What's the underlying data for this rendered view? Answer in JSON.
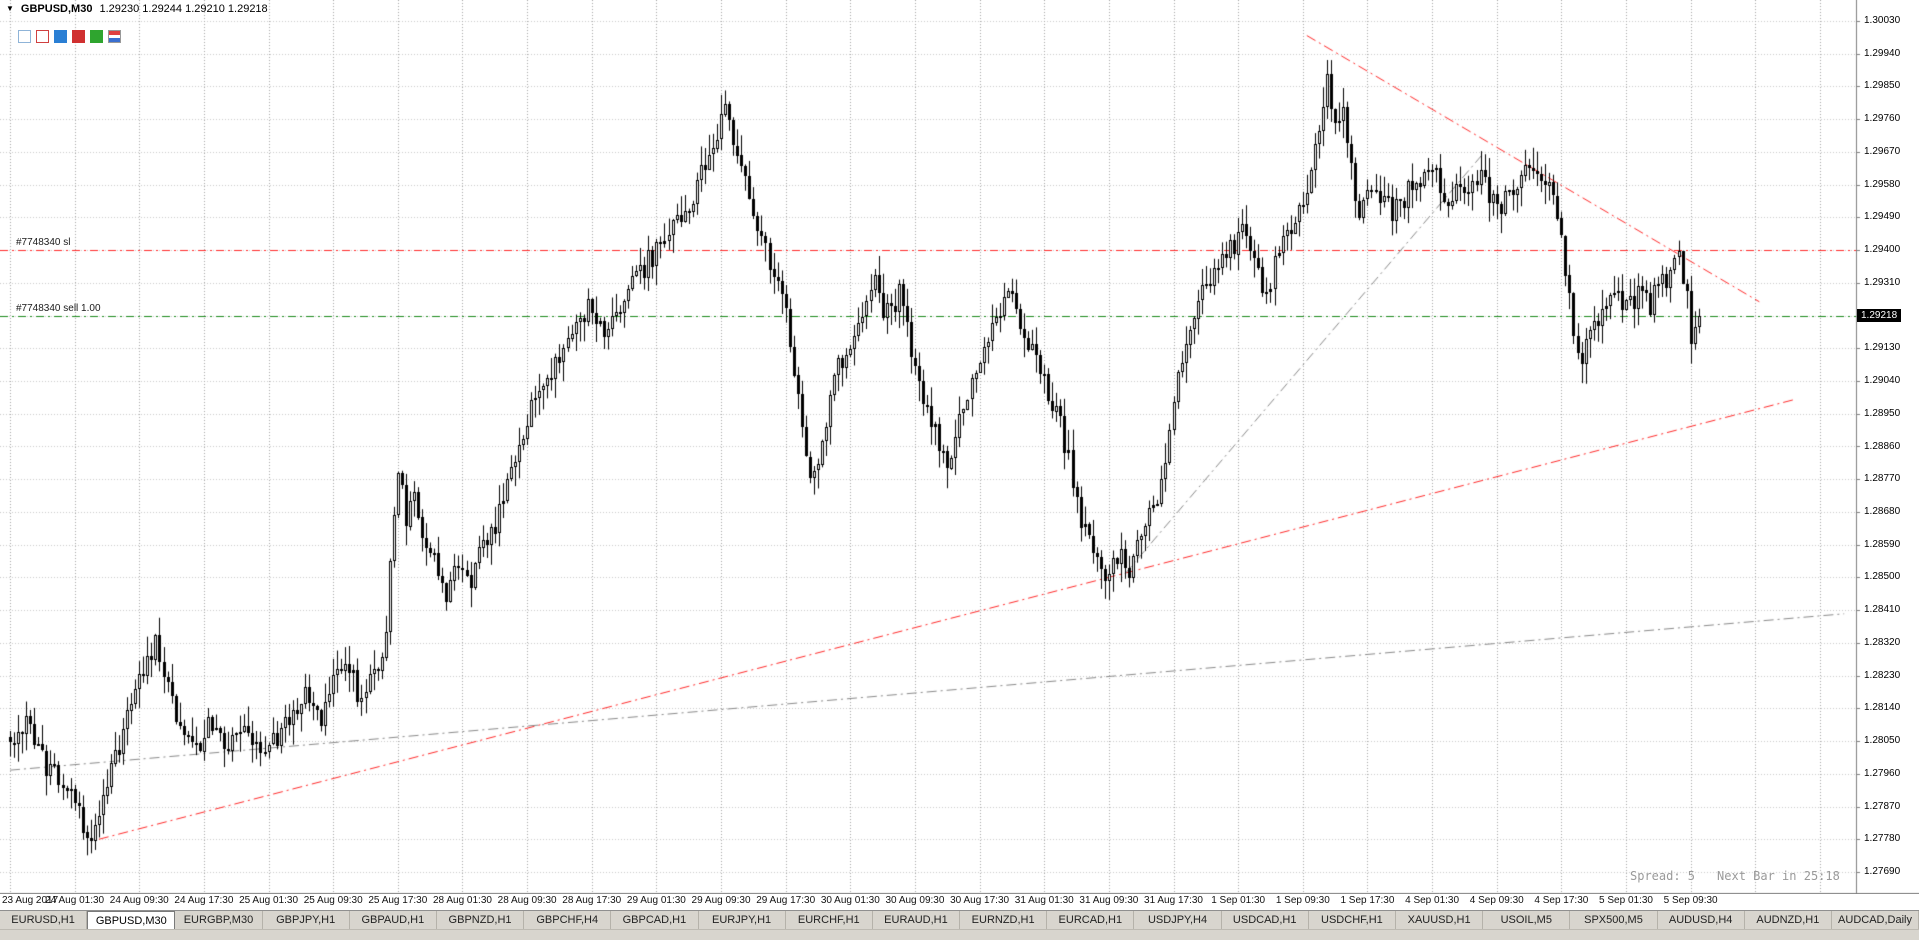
{
  "window": {
    "collapse_marker": "▼",
    "title_symbol": "GBPUSD,M30",
    "ohlc_text": "1.29230 1.29244 1.29210 1.29218"
  },
  "toolbar": {
    "swatches": [
      {
        "name": "swatch-lightblue-outline",
        "type": "outline",
        "color": "#8fb4d8"
      },
      {
        "name": "swatch-red-outline",
        "type": "outline",
        "color": "#d04040"
      },
      {
        "name": "swatch-blue",
        "type": "fill",
        "color": "#2a7fd4"
      },
      {
        "name": "swatch-red",
        "type": "fill",
        "color": "#d03030"
      },
      {
        "name": "swatch-green",
        "type": "fill",
        "color": "#2fa52f"
      },
      {
        "name": "swatch-striped-flag",
        "type": "stripes",
        "colors": [
          "#e04040",
          "#ffffff",
          "#3a6fd0"
        ]
      }
    ]
  },
  "status": {
    "spread": "Spread: 5",
    "next_bar": "Next Bar in 25:18"
  },
  "orders": [
    {
      "label": "#7748340 sl",
      "price": 1.294,
      "color": "#ff2a2a"
    },
    {
      "label": "#7748340 sell 1.00",
      "price": 1.29218,
      "color": "#1c8a1c"
    }
  ],
  "price_axis": {
    "top_price": 1.3003,
    "step": 0.0009,
    "labels": [
      "1.30030",
      "1.29940",
      "1.29850",
      "1.29760",
      "1.29670",
      "1.29580",
      "1.29490",
      "1.29400",
      "1.29310",
      "1.29130",
      "1.29040",
      "1.28950",
      "1.28860",
      "1.28770",
      "1.28680",
      "1.28590",
      "1.28500",
      "1.28410",
      "1.28320",
      "1.28230",
      "1.28140",
      "1.28050",
      "1.27960",
      "1.27870",
      "1.27780",
      "1.27690"
    ],
    "current": "1.29218",
    "current_price": 1.29218
  },
  "time_axis": {
    "bars_per_label": 16,
    "labels": [
      "23 Aug 2017",
      "24 Aug 01:30",
      "24 Aug 09:30",
      "24 Aug 17:30",
      "25 Aug 01:30",
      "25 Aug 09:30",
      "25 Aug 17:30",
      "28 Aug 01:30",
      "28 Aug 09:30",
      "28 Aug 17:30",
      "29 Aug 01:30",
      "29 Aug 09:30",
      "29 Aug 17:30",
      "30 Aug 01:30",
      "30 Aug 09:30",
      "30 Aug 17:30",
      "31 Aug 01:30",
      "31 Aug 09:30",
      "31 Aug 17:30",
      "1 Sep 01:30",
      "1 Sep 09:30",
      "1 Sep 17:30",
      "4 Sep 01:30",
      "4 Sep 09:30",
      "4 Sep 17:30",
      "5 Sep 01:30",
      "5 Sep 09:30"
    ]
  },
  "chart_data": {
    "type": "candlestick",
    "symbol": "GBPUSD",
    "timeframe": "M30",
    "ohlc_last": {
      "open": 1.2923,
      "high": 1.29244,
      "low": 1.2921,
      "close": 1.29218
    },
    "y_range": [
      1.2769,
      1.3003
    ],
    "grid_step": 0.0009,
    "bars_total": 419,
    "seed": 20170905,
    "path_waypoints": [
      [
        0,
        1.2806
      ],
      [
        4,
        1.2811
      ],
      [
        8,
        1.28
      ],
      [
        12,
        1.2795
      ],
      [
        16,
        1.2786
      ],
      [
        19,
        1.278
      ],
      [
        21,
        1.2779
      ],
      [
        24,
        1.2791
      ],
      [
        28,
        1.2809
      ],
      [
        32,
        1.2824
      ],
      [
        36,
        1.2832
      ],
      [
        39,
        1.282
      ],
      [
        42,
        1.2809
      ],
      [
        46,
        1.2804
      ],
      [
        50,
        1.281
      ],
      [
        54,
        1.2803
      ],
      [
        58,
        1.2807
      ],
      [
        62,
        1.28
      ],
      [
        66,
        1.2805
      ],
      [
        70,
        1.2812
      ],
      [
        74,
        1.2818
      ],
      [
        77,
        1.2812
      ],
      [
        80,
        1.2821
      ],
      [
        83,
        1.2828
      ],
      [
        86,
        1.2818
      ],
      [
        89,
        1.2823
      ],
      [
        92,
        1.2825
      ],
      [
        94,
        1.2852
      ],
      [
        96,
        1.2878
      ],
      [
        98,
        1.2867
      ],
      [
        100,
        1.2877
      ],
      [
        102,
        1.2861
      ],
      [
        105,
        1.2856
      ],
      [
        108,
        1.2846
      ],
      [
        111,
        1.2853
      ],
      [
        114,
        1.285
      ],
      [
        117,
        1.2858
      ],
      [
        120,
        1.2865
      ],
      [
        124,
        1.2877
      ],
      [
        128,
        1.2894
      ],
      [
        132,
        1.2904
      ],
      [
        136,
        1.291
      ],
      [
        140,
        1.2918
      ],
      [
        144,
        1.2926
      ],
      [
        147,
        1.2916
      ],
      [
        150,
        1.2924
      ],
      [
        154,
        1.2931
      ],
      [
        158,
        1.2937
      ],
      [
        162,
        1.2942
      ],
      [
        166,
        1.295
      ],
      [
        170,
        1.2958
      ],
      [
        174,
        1.2968
      ],
      [
        177,
        1.2977
      ],
      [
        180,
        1.2969
      ],
      [
        183,
        1.2957
      ],
      [
        186,
        1.2944
      ],
      [
        189,
        1.2934
      ],
      [
        192,
        1.2925
      ],
      [
        194,
        1.2906
      ],
      [
        197,
        1.288
      ],
      [
        199,
        1.2876
      ],
      [
        202,
        1.2892
      ],
      [
        205,
        1.2908
      ],
      [
        208,
        1.2916
      ],
      [
        211,
        1.2924
      ],
      [
        214,
        1.293
      ],
      [
        217,
        1.2922
      ],
      [
        220,
        1.2928
      ],
      [
        223,
        1.2912
      ],
      [
        226,
        1.29
      ],
      [
        229,
        1.289
      ],
      [
        232,
        1.288
      ],
      [
        235,
        1.2892
      ],
      [
        238,
        1.2905
      ],
      [
        241,
        1.2915
      ],
      [
        244,
        1.2922
      ],
      [
        247,
        1.2928
      ],
      [
        250,
        1.2918
      ],
      [
        253,
        1.2912
      ],
      [
        256,
        1.2904
      ],
      [
        259,
        1.2895
      ],
      [
        262,
        1.2883
      ],
      [
        265,
        1.2867
      ],
      [
        268,
        1.2857
      ],
      [
        271,
        1.2852
      ],
      [
        274,
        1.2856
      ],
      [
        277,
        1.2851
      ],
      [
        280,
        1.286
      ],
      [
        283,
        1.2869
      ],
      [
        286,
        1.2883
      ],
      [
        289,
        1.2903
      ],
      [
        292,
        1.2916
      ],
      [
        295,
        1.2928
      ],
      [
        298,
        1.2934
      ],
      [
        301,
        1.2938
      ],
      [
        304,
        1.2943
      ],
      [
        306,
        1.2946
      ],
      [
        308,
        1.2938
      ],
      [
        310,
        1.2928
      ],
      [
        312,
        1.2932
      ],
      [
        314,
        1.294
      ],
      [
        316,
        1.2944
      ],
      [
        318,
        1.2948
      ],
      [
        320,
        1.2953
      ],
      [
        323,
        1.2968
      ],
      [
        326,
        1.299
      ],
      [
        328,
        1.2974
      ],
      [
        330,
        1.2979
      ],
      [
        332,
        1.2961
      ],
      [
        334,
        1.2951
      ],
      [
        336,
        1.2958
      ],
      [
        339,
        1.2954
      ],
      [
        342,
        1.295
      ],
      [
        345,
        1.2955
      ],
      [
        348,
        1.2959
      ],
      [
        351,
        1.2962
      ],
      [
        354,
        1.2958
      ],
      [
        357,
        1.2954
      ],
      [
        360,
        1.2958
      ],
      [
        363,
        1.2961
      ],
      [
        366,
        1.2956
      ],
      [
        369,
        1.2952
      ],
      [
        372,
        1.2956
      ],
      [
        375,
        1.296
      ],
      [
        378,
        1.2962
      ],
      [
        381,
        1.2958
      ],
      [
        383,
        1.295
      ],
      [
        385,
        1.2935
      ],
      [
        387,
        1.2916
      ],
      [
        389,
        1.291
      ],
      [
        391,
        1.2916
      ],
      [
        394,
        1.2922
      ],
      [
        397,
        1.2927
      ],
      [
        400,
        1.2924
      ],
      [
        403,
        1.2929
      ],
      [
        406,
        1.2925
      ],
      [
        409,
        1.2931
      ],
      [
        411,
        1.2935
      ],
      [
        413,
        1.2937
      ],
      [
        415,
        1.2926
      ],
      [
        416,
        1.2912
      ],
      [
        418,
        1.2922
      ]
    ],
    "trendlines": [
      {
        "name": "resistance-trendline",
        "color": "#ff2a2a",
        "from": [
          321,
          1.2999
        ],
        "to": [
          433,
          1.29258
        ]
      },
      {
        "name": "support-trendline",
        "color": "#ff2a2a",
        "from": [
          22,
          1.2778
        ],
        "to": [
          442,
          1.2899
        ]
      },
      {
        "name": "long-term-trendline",
        "color": "#8a8a8a",
        "from": [
          0,
          1.2797
        ],
        "to": [
          454,
          1.284
        ]
      },
      {
        "name": "triangle-trendline",
        "color": "#8a8a8a",
        "from": [
          276,
          1.2851
        ],
        "to": [
          365,
          1.2967
        ]
      }
    ]
  },
  "tabs": {
    "active_index": 1,
    "items": [
      "EURUSD,H1",
      "GBPUSD,M30",
      "EURGBP,M30",
      "GBPJPY,H1",
      "GBPAUD,H1",
      "GBPNZD,H1",
      "GBPCHF,H4",
      "GBPCAD,H1",
      "EURJPY,H1",
      "EURCHF,H1",
      "EURAUD,H1",
      "EURNZD,H1",
      "EURCAD,H1",
      "USDJPY,H4",
      "USDCAD,H1",
      "USDCHF,H1",
      "XAUUSD,H1",
      "USOIL,M5",
      "SPX500,M5",
      "AUDUSD,H4",
      "AUDNZD,H1",
      "AUDCAD,Daily"
    ]
  }
}
